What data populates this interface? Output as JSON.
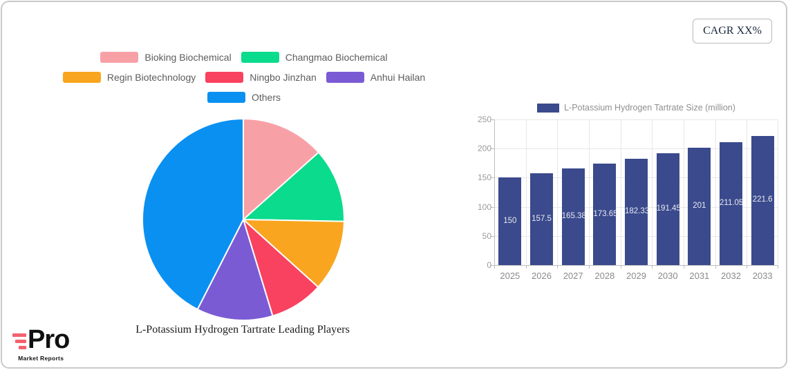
{
  "header": {
    "cagr_label": "CAGR XX%"
  },
  "logo": {
    "name": "Pro",
    "subtitle": "Market Reports",
    "accent_color": "#f4626e"
  },
  "chart_data": [
    {
      "type": "pie",
      "title": "L-Potassium Hydrogen Tartrate Leading Players",
      "labels": [
        "Bioking Biochemical",
        "Changmao Biochemical",
        "Regin Biotechnology",
        "Ningbo Jinzhan",
        "Anhui Hailan",
        "Others"
      ],
      "values": [
        13.4,
        11.9,
        11.4,
        8.6,
        12.2,
        42.5
      ],
      "colors": [
        "#f7a1a7",
        "#0bdb8c",
        "#f9a51f",
        "#f9425f",
        "#7a5bd4",
        "#0a90f1"
      ],
      "legend_rows": [
        [
          0,
          1
        ],
        [
          2,
          3,
          4
        ],
        [
          5
        ]
      ],
      "start_angle_deg": 0,
      "direction": "clockwise",
      "slice_border_color": "#ffffff"
    },
    {
      "type": "bar",
      "categories": [
        "2025",
        "2026",
        "2027",
        "2028",
        "2029",
        "2030",
        "2031",
        "2032",
        "2033"
      ],
      "series": [
        {
          "name": "L-Potassium Hydrogen Tartrate Size (million)",
          "values": [
            150,
            157.5,
            165.38,
            173.65,
            182.33,
            191.45,
            201,
            211.05,
            221.6
          ],
          "color": "#3a4a8c"
        }
      ],
      "ylim": [
        0,
        250
      ],
      "yticks": [
        0,
        50,
        100,
        150,
        200,
        250
      ],
      "grid": true,
      "legend_position": "top",
      "value_label_color": "#e9e9f2"
    }
  ]
}
